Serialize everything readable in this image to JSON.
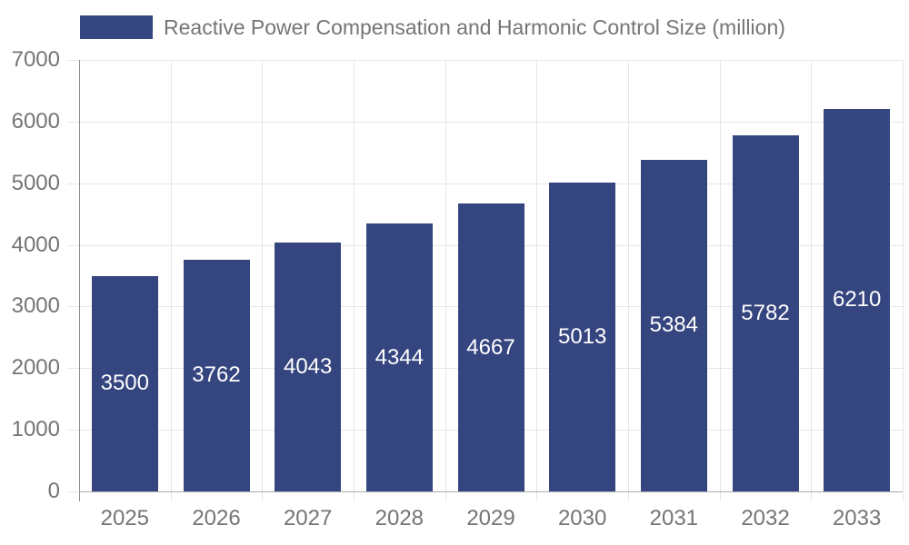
{
  "legend": {
    "label": "Reactive Power Compensation and Harmonic Control Size (million)"
  },
  "colors": {
    "bar": "#35457F",
    "legend_swatch": "#35457F",
    "title_text": "#757575",
    "axis_label": "#757575",
    "value_label": "#ffffff",
    "gridline": "#e6e6e6",
    "y_axis_line": "#8c8c8c",
    "x_axis_line": "#aaaaaa",
    "background": "#ffffff"
  },
  "chart_data": {
    "type": "bar",
    "title": "Reactive Power Compensation and Harmonic Control Size (million)",
    "series_name": "Reactive Power Compensation and Harmonic Control Size (million)",
    "categories": [
      "2025",
      "2026",
      "2027",
      "2028",
      "2029",
      "2030",
      "2031",
      "2032",
      "2033"
    ],
    "values": [
      3500,
      3762,
      4043,
      4344,
      4667,
      5013,
      5384,
      5782,
      6210
    ],
    "xlabel": "",
    "ylabel": "",
    "ylim": [
      0,
      7000
    ],
    "yticks": [
      0,
      1000,
      2000,
      3000,
      4000,
      5000,
      6000,
      7000
    ],
    "grid": true,
    "bar_labels_visible": true,
    "legend_position": "top-left"
  }
}
